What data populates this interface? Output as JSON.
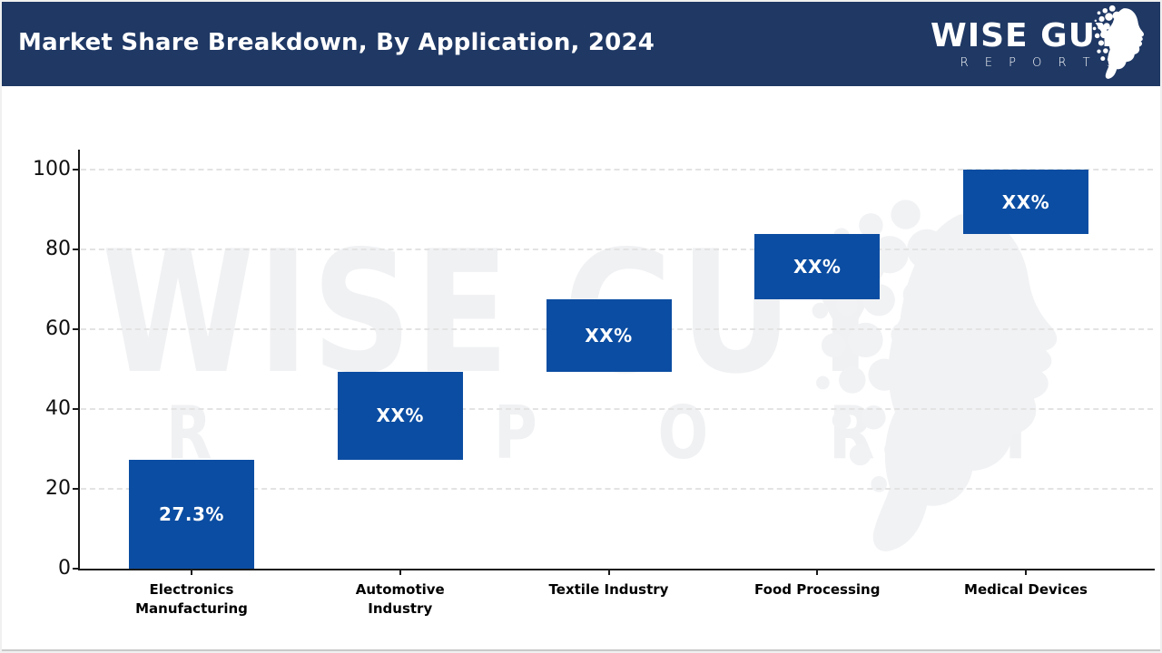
{
  "header": {
    "title": "Market Share Breakdown, By Application, 2024",
    "logo": {
      "line1": "WISE GUY",
      "line2": "R E P O R T S"
    }
  },
  "watermark": {
    "line1": "WISE GUY",
    "line2": "R E P O R T S"
  },
  "colors": {
    "header_bg": "#1f3864",
    "bar": "#0b4da2",
    "bar_label": "#ffffff",
    "grid": "#e3e3e3",
    "axis": "#1a1a1a",
    "tick_text": "#111111",
    "watermark": "#f0f1f3"
  },
  "chart_data": {
    "type": "bar",
    "subtype": "waterfall",
    "title": "Market Share Breakdown, By Application, 2024",
    "categories": [
      "Electronics\nManufacturing",
      "Automotive\nIndustry",
      "Textile Industry",
      "Food Processing",
      "Medical Devices"
    ],
    "segments": [
      {
        "category": "Electronics Manufacturing",
        "start": 0,
        "end": 27.3,
        "label": "27.3%"
      },
      {
        "category": "Automotive Industry",
        "start": 27.3,
        "end": 49.4,
        "label": "XX%"
      },
      {
        "category": "Textile Industry",
        "start": 49.4,
        "end": 67.4,
        "label": "XX%"
      },
      {
        "category": "Food Processing",
        "start": 67.4,
        "end": 83.8,
        "label": "XX%"
      },
      {
        "category": "Medical Devices",
        "start": 83.8,
        "end": 100,
        "label": "XX%"
      }
    ],
    "xlabel": "",
    "ylabel": "",
    "ylim": [
      0,
      100
    ],
    "yticks": [
      0,
      20,
      40,
      60,
      80,
      100
    ],
    "grid": "horizontal-dashed",
    "legend": null
  }
}
